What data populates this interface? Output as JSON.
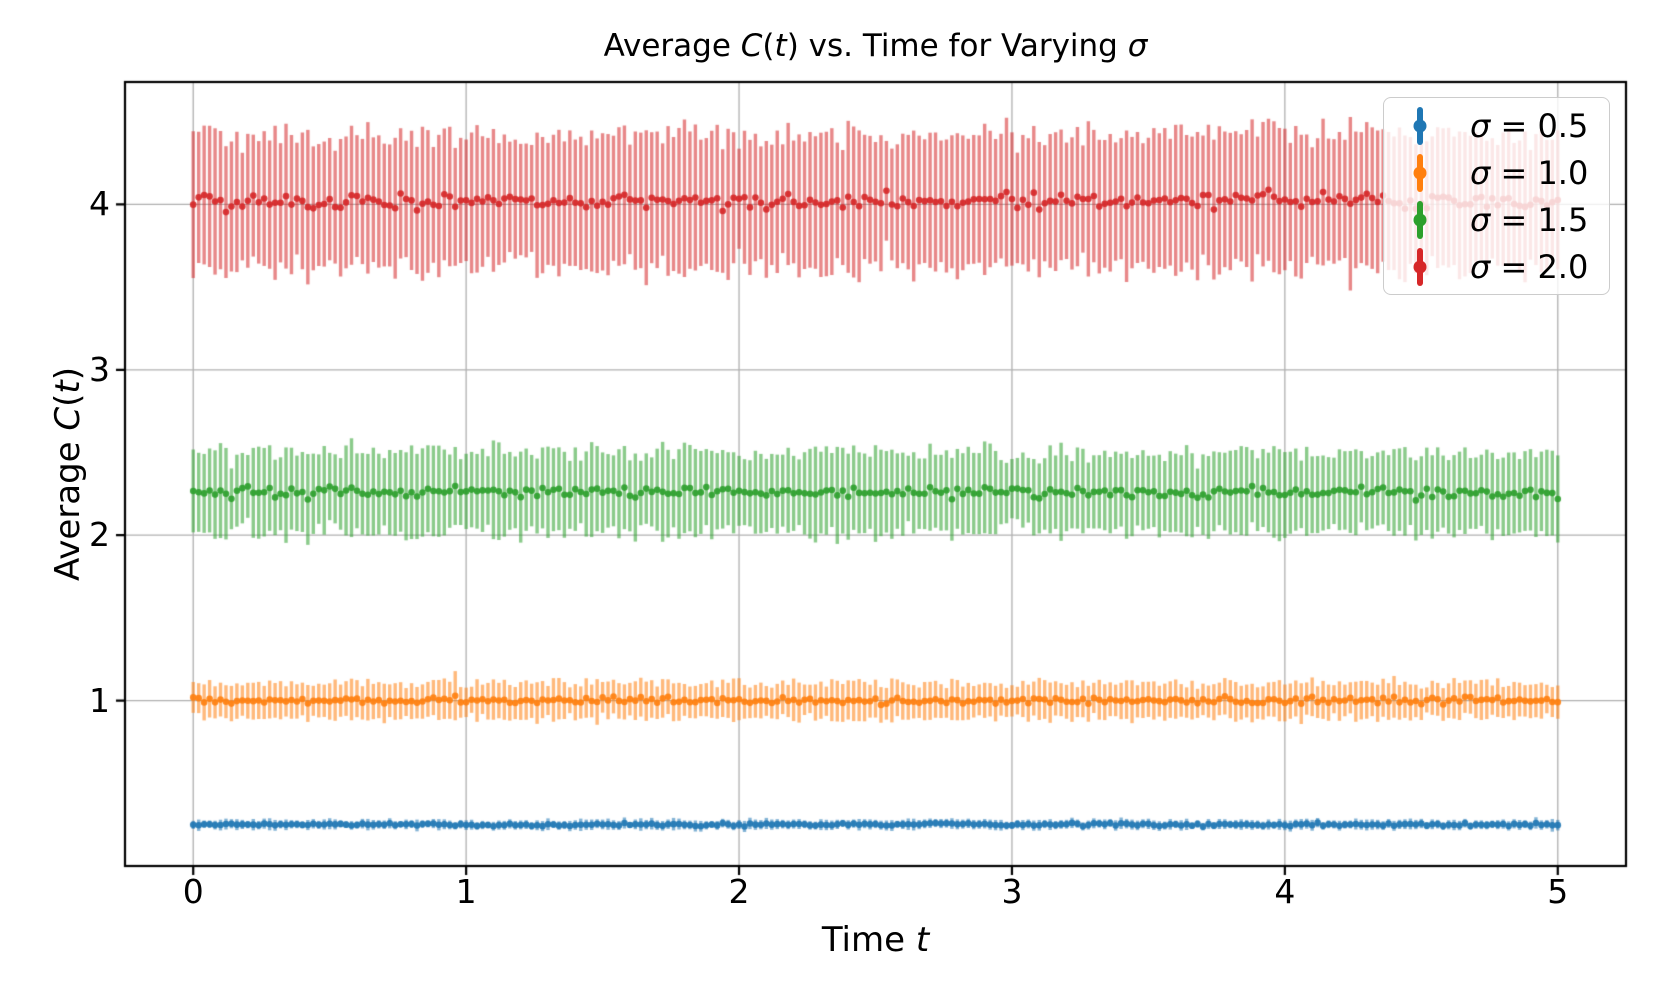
{
  "figure": {
    "title_parts": {
      "p1": "Average ",
      "m1": "C",
      "p2": "(",
      "m2": "t",
      "p3": ") vs. Time for Varying ",
      "m3": "σ"
    },
    "xlabel_parts": {
      "p1": "Time ",
      "m1": "t"
    },
    "ylabel_parts": {
      "p1": "Average ",
      "m1": "C",
      "p2": "(",
      "m2": "t",
      "p3": ")"
    }
  },
  "chart_data": {
    "type": "errorbar",
    "title": "Average C(t) vs. Time for Varying σ",
    "xlabel": "Time t",
    "ylabel": "Average C(t)",
    "grid": true,
    "grid_color": "#b0b0b0",
    "frame_color": "#000000",
    "legend_location": "upper right",
    "x_range": [
      0,
      5
    ],
    "n_points": 251,
    "xlim": [
      -0.25,
      5.25
    ],
    "ylim": [
      0,
      4.74
    ],
    "xticks": [
      "0",
      "1",
      "2",
      "3",
      "4",
      "5"
    ],
    "xtick_values": [
      0,
      1,
      2,
      3,
      4,
      5
    ],
    "yticks": [
      "1",
      "2",
      "3",
      "4"
    ],
    "ytick_values": [
      1,
      2,
      3,
      4
    ],
    "series": [
      {
        "label": "σ = 0.5",
        "sigma_symbol": "σ",
        "label_rest": " = 0.5",
        "sigma": 0.5,
        "color": "#1f77b4",
        "mean": 0.25,
        "mean_jitter": 0.005,
        "error": 0.028,
        "error_jitter": 0.004,
        "seed": 11
      },
      {
        "label": "σ = 1.0",
        "sigma_symbol": "σ",
        "label_rest": " = 1.0",
        "sigma": 1.0,
        "color": "#ff7f0e",
        "mean": 1.0,
        "mean_jitter": 0.01,
        "error": 0.105,
        "error_jitter": 0.013,
        "seed": 22
      },
      {
        "label": "σ = 1.5",
        "sigma_symbol": "σ",
        "label_rest": " = 1.5",
        "sigma": 1.5,
        "color": "#2ca02c",
        "mean": 2.26,
        "mean_jitter": 0.017,
        "error": 0.24,
        "error_jitter": 0.025,
        "seed": 33
      },
      {
        "label": "σ = 2.0",
        "sigma_symbol": "σ",
        "label_rest": " = 2.0",
        "sigma": 2.0,
        "color": "#d62728",
        "mean": 4.02,
        "mean_jitter": 0.025,
        "error": 0.4,
        "error_jitter": 0.035,
        "seed": 44
      }
    ]
  }
}
